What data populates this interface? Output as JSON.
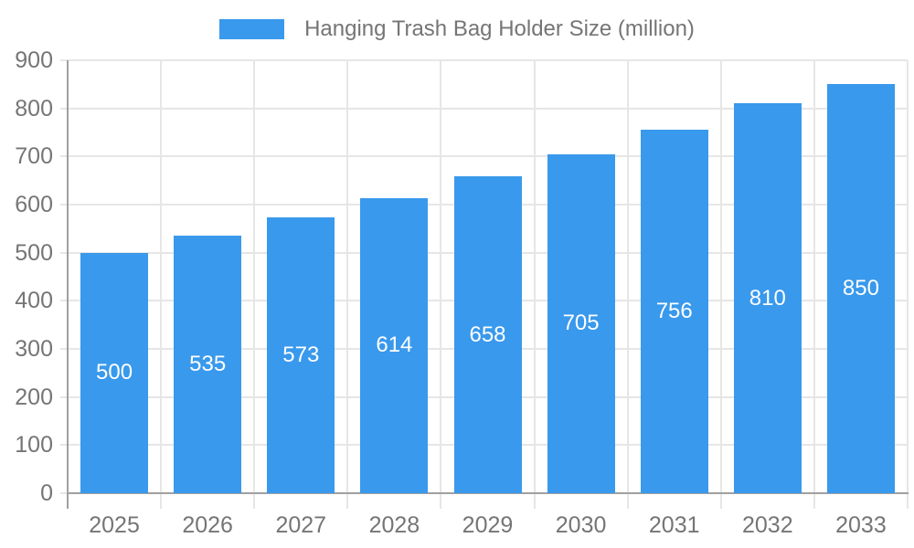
{
  "chart_data": {
    "type": "bar",
    "title": "",
    "legend": "Hanging Trash Bag Holder Size (million)",
    "legend_position": "top",
    "categories": [
      "2025",
      "2026",
      "2027",
      "2028",
      "2029",
      "2030",
      "2031",
      "2032",
      "2033"
    ],
    "values": [
      500,
      535,
      573,
      614,
      658,
      705,
      756,
      810,
      850
    ],
    "xlabel": "",
    "ylabel": "",
    "ylim": [
      0,
      900
    ],
    "yticks": [
      0,
      100,
      200,
      300,
      400,
      500,
      600,
      700,
      800,
      900
    ],
    "grid": true,
    "value_labels": "inside-center",
    "colors": {
      "bar": "#3999EC",
      "grid": "#E6E6E6",
      "axis": "#A0A0A0",
      "tick_text": "#757575",
      "value_text": "#FFFFFF",
      "background": "#FFFFFF"
    }
  }
}
